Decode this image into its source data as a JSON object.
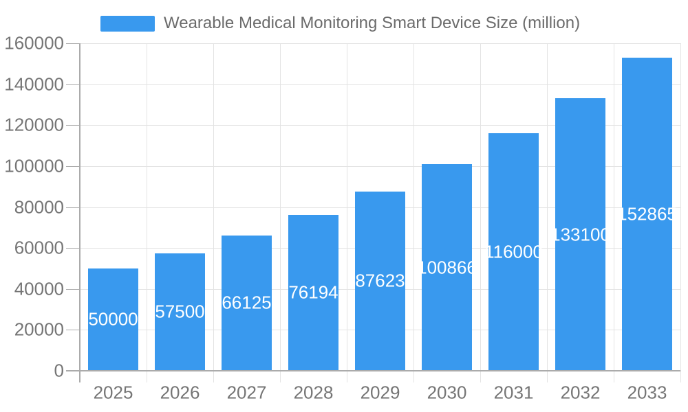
{
  "chart_data": {
    "type": "bar",
    "title": "Wearable Medical Monitoring Smart Device Size (million)",
    "legend": [
      "Wearable Medical Monitoring Smart Device Size (million)"
    ],
    "legend_position": "top",
    "categories": [
      "2025",
      "2026",
      "2027",
      "2028",
      "2029",
      "2030",
      "2031",
      "2032",
      "2033"
    ],
    "values": [
      50000,
      57500,
      66125,
      76194,
      87623,
      100866,
      116000,
      133100,
      152865
    ],
    "value_labels": [
      "50000",
      "57500",
      "66125",
      "76194",
      "87623",
      "100866",
      "116000",
      "133100",
      "152865"
    ],
    "xlabel": "",
    "ylabel": "",
    "ylim": [
      0,
      160000
    ],
    "y_ticks": [
      "0",
      "20000",
      "40000",
      "60000",
      "80000",
      "100000",
      "120000",
      "140000",
      "160000"
    ],
    "grid": true,
    "colors": {
      "bar": "#3999EE",
      "value_label": "#FFFFFF",
      "axis_text": "#757575",
      "legend_text": "#6B6B6B",
      "grid": "#E3E3E3",
      "axis_line": "#ABABAB"
    }
  }
}
